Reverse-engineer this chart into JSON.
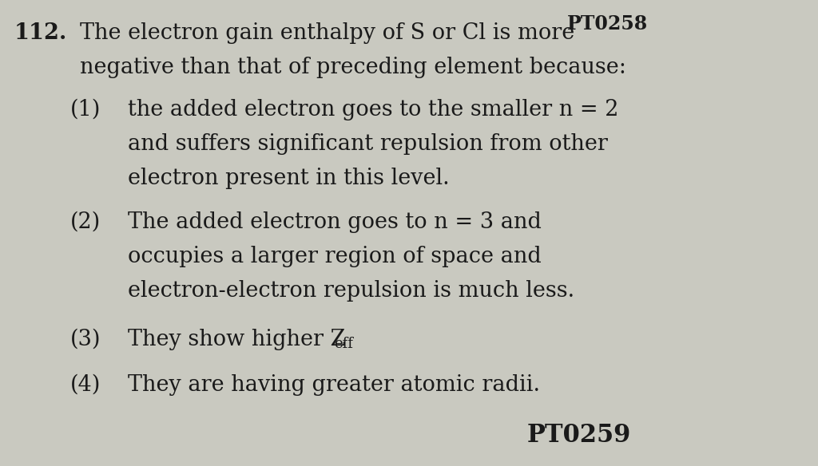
{
  "background_color": "#c9c9c0",
  "text_color": "#1a1a1a",
  "header_text": "PT0258",
  "question_number": "112.",
  "q_line1": "The electron gain enthalpy of S or Cl is more",
  "q_line2": "negative than that of preceding element because:",
  "opt1_label": "(1)",
  "opt1_line1": "the added electron goes to the smaller n = 2",
  "opt1_line2": "and suffers significant repulsion from other",
  "opt1_line3": "electron present in this level.",
  "opt2_label": "(2)",
  "opt2_line1": "The added electron goes to n = 3 and",
  "opt2_line2": "occupies a larger region of space and",
  "opt2_line3": "electron-electron repulsion is much less.",
  "opt3_label": "(3)",
  "opt3_text": "They show higher Z",
  "opt3_subscript": "eff",
  "opt4_label": "(4)",
  "opt4_text": "They are having greater atomic radii.",
  "footer_text": "PT0259",
  "font_size_main": 19.5,
  "font_size_sub": 13,
  "font_size_footer": 22,
  "font_size_header": 17
}
